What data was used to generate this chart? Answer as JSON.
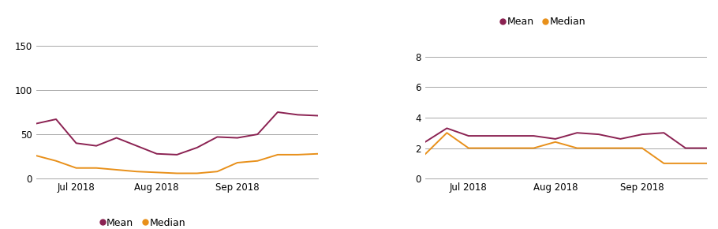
{
  "left": {
    "mean": [
      62,
      67,
      40,
      37,
      46,
      37,
      28,
      27,
      35,
      47,
      46,
      50,
      75,
      72,
      71
    ],
    "median": [
      26,
      20,
      12,
      12,
      10,
      8,
      7,
      6,
      6,
      8,
      18,
      20,
      27,
      27,
      28
    ],
    "ylim": [
      0,
      155
    ],
    "yticks": [
      0,
      50,
      100,
      150
    ],
    "xtick_pos": [
      2,
      6,
      10
    ],
    "xtick_labels": [
      "Jul 2018",
      "Aug 2018",
      "Sep 2018"
    ]
  },
  "right": {
    "mean": [
      2.4,
      3.3,
      2.8,
      2.8,
      2.8,
      2.8,
      2.6,
      3.0,
      2.9,
      2.6,
      2.9,
      3.0,
      2.0,
      2.0
    ],
    "median": [
      1.6,
      3.0,
      2.0,
      2.0,
      2.0,
      2.0,
      2.4,
      2.0,
      2.0,
      2.0,
      2.0,
      1.0,
      1.0,
      1.0
    ],
    "ylim": [
      0,
      9
    ],
    "yticks": [
      0,
      2,
      4,
      6,
      8
    ],
    "xtick_pos": [
      2,
      6,
      10
    ],
    "xtick_labels": [
      "Jul 2018",
      "Aug 2018",
      "Sep 2018"
    ]
  },
  "mean_color": "#8B2252",
  "median_color": "#E8901A",
  "line_width": 1.4,
  "bg_color": "#FFFFFF",
  "grid_color": "#999999",
  "tick_label_fontsize": 8.5,
  "legend_fontsize": 9,
  "marker_size": 5
}
